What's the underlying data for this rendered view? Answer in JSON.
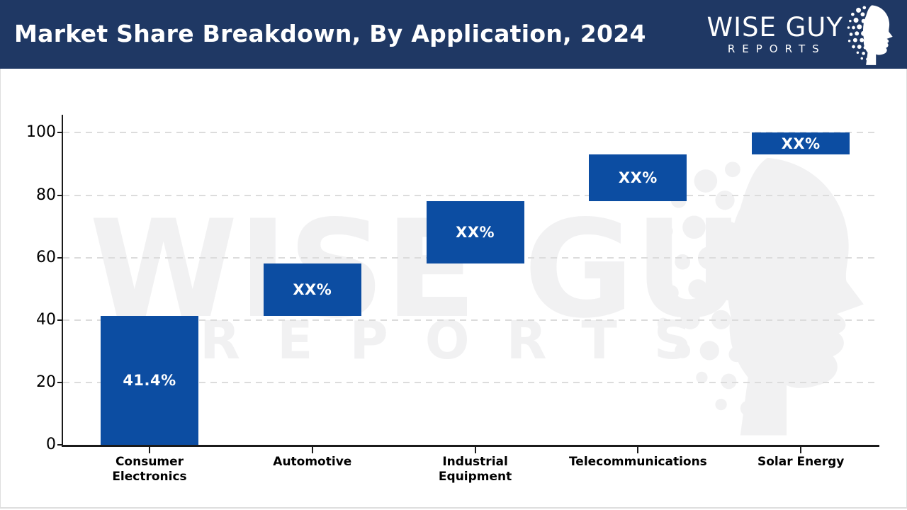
{
  "header": {
    "title": "Market Share Breakdown, By Application, 2024",
    "logo": {
      "line1": "WISE GUY",
      "line2": "REPORTS"
    }
  },
  "watermark": {
    "line1": "WISE GUY",
    "line2": "REPORTS"
  },
  "colors": {
    "header_bg": "#1f3864",
    "bar": "#0c4da2",
    "bar_label": "#ffffff",
    "grid": "#dcdcdc",
    "axis": "#1a1a1a",
    "watermark": "#f1f1f2"
  },
  "chart_data": {
    "type": "bar",
    "subtype": "floating-waterfall",
    "title": "Market Share Breakdown, By Application, 2024",
    "xlabel": "",
    "ylabel": "",
    "ylim": [
      0,
      100
    ],
    "yticks": [
      0,
      20,
      40,
      60,
      80,
      100
    ],
    "grid": "horizontal-dashed",
    "legend": "none",
    "categories": [
      {
        "lines": [
          "Consumer",
          "Electronics"
        ]
      },
      {
        "lines": [
          "Automotive"
        ]
      },
      {
        "lines": [
          "Industrial",
          "Equipment"
        ]
      },
      {
        "lines": [
          "Telecommunications"
        ]
      },
      {
        "lines": [
          "Solar Energy"
        ]
      }
    ],
    "segments": [
      {
        "category": "Consumer Electronics",
        "start": 0,
        "end": 41.4,
        "label": "41.4%"
      },
      {
        "category": "Automotive",
        "start": 41.4,
        "end": 58,
        "label": "XX%"
      },
      {
        "category": "Industrial Equipment",
        "start": 58,
        "end": 78,
        "label": "XX%"
      },
      {
        "category": "Telecommunications",
        "start": 78,
        "end": 93,
        "label": "XX%"
      },
      {
        "category": "Solar Energy",
        "start": 93,
        "end": 100,
        "label": "XX%"
      }
    ]
  }
}
